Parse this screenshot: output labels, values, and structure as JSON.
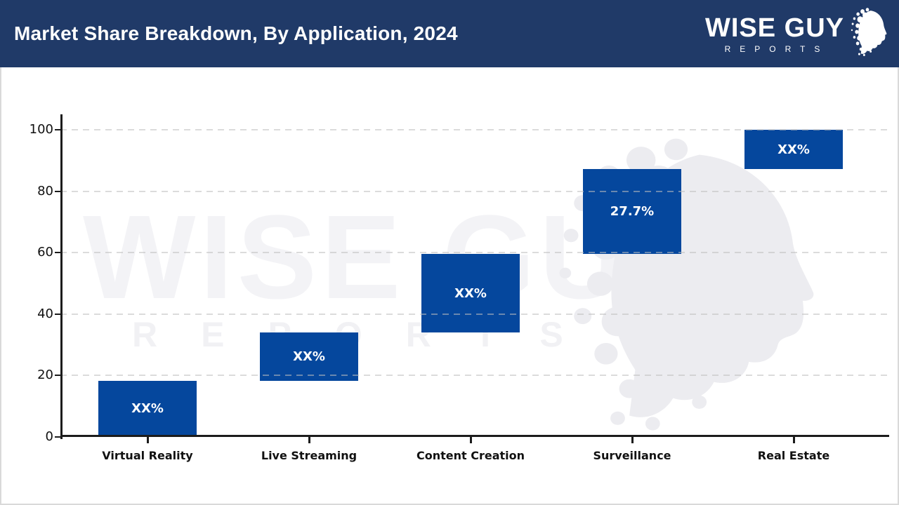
{
  "header": {
    "title": "Market Share Breakdown, By Application, 2024",
    "logo": {
      "brand": "WISE GUY",
      "sub": "REPORTS"
    }
  },
  "watermark": {
    "brand": "WISE GUY",
    "sub": "REPORTS"
  },
  "chart_data": {
    "type": "bar",
    "variant": "waterfall-market-share",
    "title": "Market Share Breakdown, By Application, 2024",
    "categories": [
      "Virtual Reality",
      "Live Streaming",
      "Content Creation",
      "Surveillance",
      "Real Estate"
    ],
    "segments": [
      {
        "category": "Virtual Reality",
        "start": 0,
        "end": 18.3,
        "span_estimate": 18.3,
        "label": "XX%"
      },
      {
        "category": "Live Streaming",
        "start": 18.3,
        "end": 34.1,
        "span_estimate": 15.8,
        "label": "XX%"
      },
      {
        "category": "Content Creation",
        "start": 34.1,
        "end": 59.5,
        "span_estimate": 25.4,
        "label": "XX%"
      },
      {
        "category": "Surveillance",
        "start": 59.5,
        "end": 87.2,
        "span_estimate": 27.7,
        "label": "27.7%",
        "value": 27.7
      },
      {
        "category": "Real Estate",
        "start": 87.2,
        "end": 100,
        "span_estimate": 12.8,
        "label": "XX%"
      }
    ],
    "ylim": [
      0,
      100
    ],
    "y_ticks": [
      0,
      20,
      40,
      60,
      80,
      100
    ],
    "grid": "horizontal-dashed",
    "legend": "none",
    "bar_color": "#05479D",
    "axis_color": "#1c1c1c",
    "bar_label_color": "#ffffff"
  },
  "colors": {
    "header_bg": "#203A68",
    "bar_blue": "#05479D",
    "watermark_gray": "#F0F0F3",
    "gridline_gray": "#DEDEDE"
  }
}
